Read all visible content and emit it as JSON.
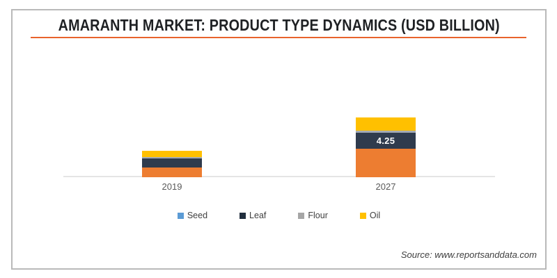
{
  "header": {
    "title": "AMARANTH MARKET: PRODUCT TYPE DYNAMICS (USD BILLION)",
    "rule_color": "#e8632c"
  },
  "source": {
    "text": "Source: www.reportsanddata.com"
  },
  "chart_data": {
    "type": "bar",
    "subtype": "stacked-vertical",
    "title": "AMARANTH MARKET: PRODUCT TYPE DYNAMICS (USD BILLION)",
    "xlabel": "",
    "ylabel": "USD Billion",
    "grid": false,
    "categories": [
      "2019",
      "2027"
    ],
    "series": [
      {
        "name": "Seed",
        "bar_color": "#ed7d31",
        "values": [
          2.5,
          7.6
        ]
      },
      {
        "name": "Leaf",
        "bar_color": "#2f3b4d",
        "values": [
          2.4,
          4.25
        ]
      },
      {
        "name": "Flour",
        "bar_color": "#a3aab4",
        "values": [
          0.55,
          0.55
        ]
      },
      {
        "name": "Oil",
        "bar_color": "#ffc000",
        "values": [
          1.5,
          3.5
        ]
      }
    ],
    "data_labels": [
      {
        "category": "2027",
        "series": "Leaf",
        "text": "4.25"
      }
    ],
    "legend_position": "bottom",
    "legend": [
      {
        "label": "Seed",
        "color": "#5b9bd5"
      },
      {
        "label": "Leaf",
        "color": "#222f3e"
      },
      {
        "label": "Flour",
        "color": "#a6a6a6"
      },
      {
        "label": "Oil",
        "color": "#ffc000"
      }
    ],
    "axis_line_color": "#e5e5e5",
    "tick_label_color": "#595959"
  }
}
